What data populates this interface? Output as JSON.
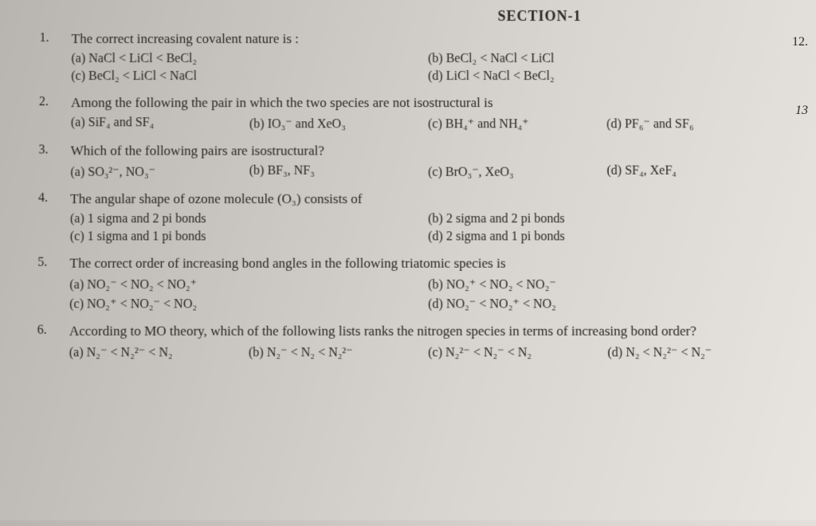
{
  "header": "SECTION-1",
  "margin": {
    "n1": "12.",
    "n2": "13"
  },
  "q1": {
    "num": "1.",
    "text": "The correct increasing covalent nature is :",
    "a": "(a)  NaCl < LiCl < BeCl₂",
    "b": "(b)  BeCl₂ < NaCl < LiCl",
    "c": "(c)  BeCl₂ < LiCl < NaCl",
    "d": "(d)  LiCl < NaCl < BeCl₂"
  },
  "q2": {
    "num": "2.",
    "text": "Among the following the pair in which the two species are not isostructural is",
    "a": "(a)  SiF₄ and SF₄",
    "b": "(b)  IO₃⁻ and XeO₃",
    "c": "(c)  BH₄⁺ and NH₄⁺",
    "d": "(d)  PF₆⁻ and SF₆"
  },
  "q3": {
    "num": "3.",
    "text": "Which of the following pairs are isostructural?",
    "a": "(a)  SO₃²⁻, NO₃⁻",
    "b": "(b)  BF₃, NF₃",
    "c": "(c)  BrO₃⁻, XeO₃",
    "d": "(d)  SF₄, XeF₄"
  },
  "q4": {
    "num": "4.",
    "text": "The angular shape of ozone molecule (O₃) consists of",
    "a": "(a)  1 sigma and 2 pi bonds",
    "b": "(b)  2 sigma and 2 pi bonds",
    "c": "(c)  1 sigma and 1 pi bonds",
    "d": "(d)  2 sigma and 1 pi bonds"
  },
  "q5": {
    "num": "5.",
    "text": "The correct order of increasing bond angles in the following triatomic species is",
    "a": "(a)  NO₂⁻ < NO₂ < NO₂⁺",
    "b": "(b)  NO₂⁺ < NO₂ < NO₂⁻",
    "c": "(c)  NO₂⁺ < NO₂⁻ < NO₂",
    "d": "(d)  NO₂⁻ < NO₂⁺ < NO₂"
  },
  "q6": {
    "num": "6.",
    "text": "According to MO theory, which of the following lists ranks the nitrogen species in terms of increasing bond order?",
    "a": "(a)  N₂⁻ < N₂²⁻ < N₂",
    "b": "(b)  N₂⁻ < N₂ < N₂²⁻",
    "c": "(c)  N₂²⁻ < N₂⁻ < N₂",
    "d": "(d)  N₂ < N₂²⁻ < N₂⁻"
  }
}
